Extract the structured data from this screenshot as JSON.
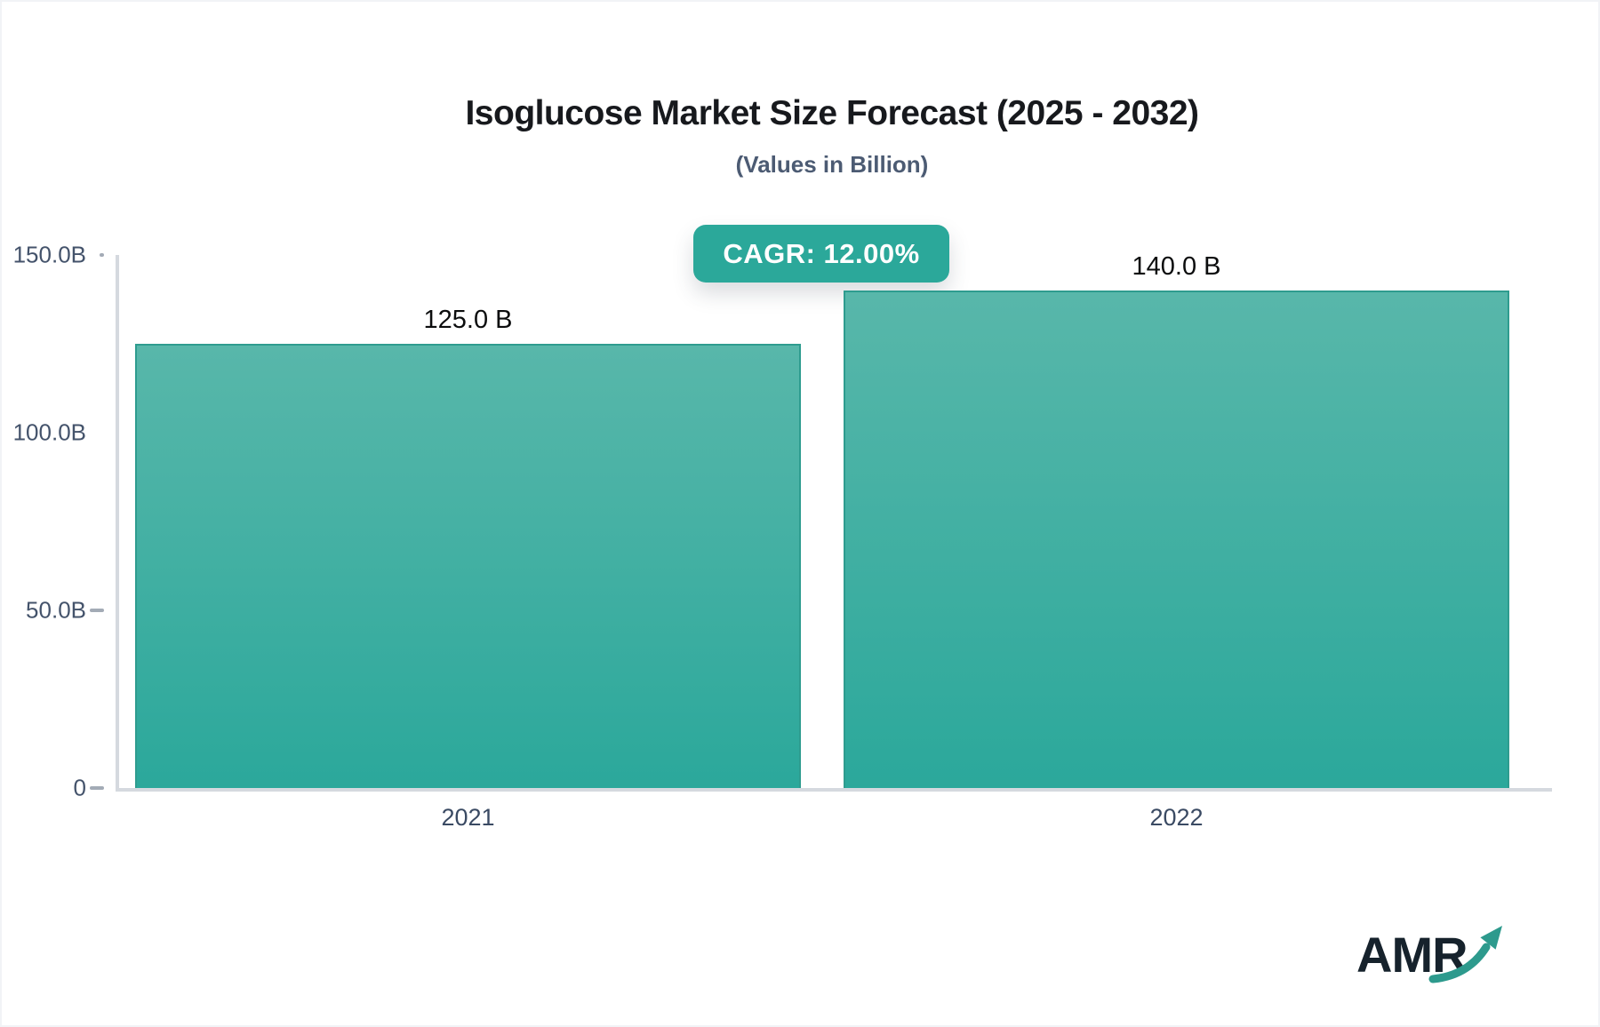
{
  "header": {
    "title": "Isoglucose Market Size Forecast (2025 - 2032)",
    "subtitle": "(Values in Billion)"
  },
  "cagr_badge": {
    "label": "CAGR: 12.00%",
    "color": "#2ba89a"
  },
  "chart_data": {
    "type": "bar",
    "title": "Isoglucose Market Size Forecast (2025 - 2032)",
    "subtitle": "(Values in Billion)",
    "categories": [
      "2021",
      "2022"
    ],
    "values": [
      125.0,
      140.0
    ],
    "value_labels": [
      "125.0 B",
      "140.0 B"
    ],
    "unit": "Billion",
    "cagr_annotation": "CAGR: 12.00%",
    "ylim": [
      0,
      150
    ],
    "yticks": [
      {
        "label": "150.0B",
        "value": 150
      },
      {
        "label": "100.0B",
        "value": 100
      },
      {
        "label": "50.0B",
        "value": 50
      },
      {
        "label": "0",
        "value": 0
      }
    ],
    "grid": false,
    "legend": "none",
    "bar_colors": {
      "top": "#58b7aa",
      "bottom": "#2ba89b",
      "border": "#2e9c8f"
    },
    "axis_color": "#d5d9df",
    "label_color": "#3a4a63"
  },
  "logo": {
    "text": "AMR",
    "text_color": "#16222c",
    "arrow_color": "#2d9a8d"
  }
}
